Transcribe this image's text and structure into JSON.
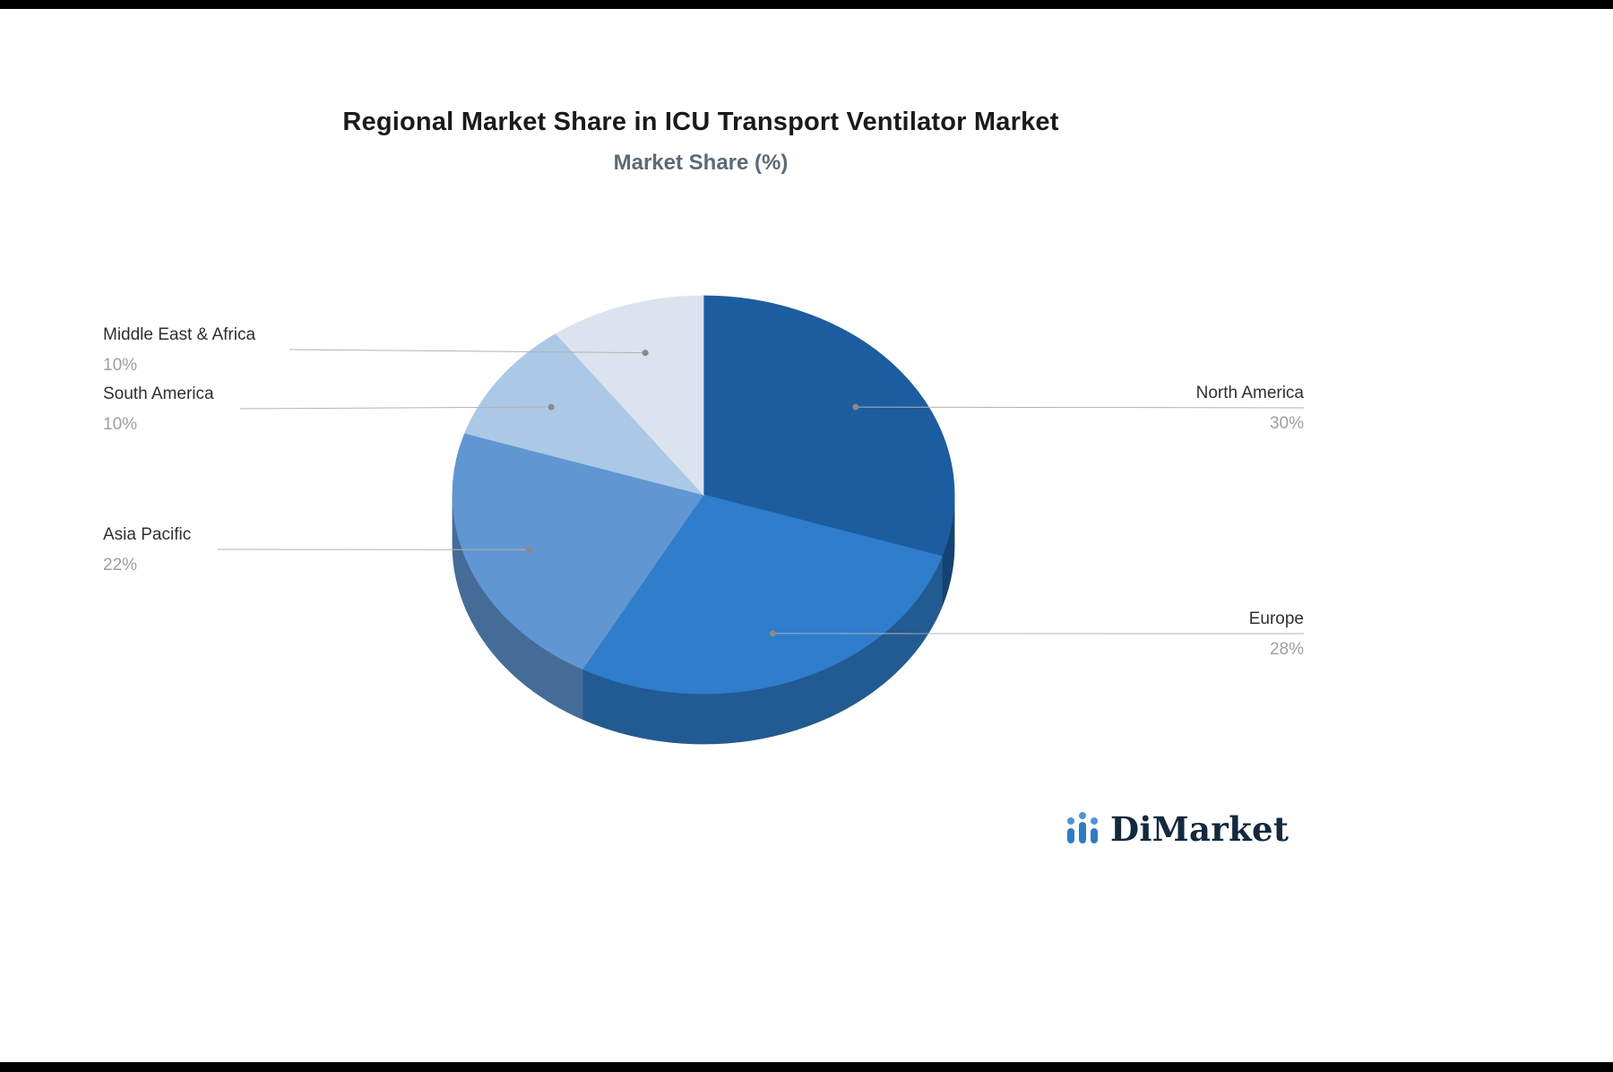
{
  "page": {
    "title": "Regional Market Share in ICU Transport Ventilator Market",
    "subtitle": "Market Share (%)"
  },
  "logo": {
    "text": "DiMarket"
  },
  "chart_data": {
    "type": "pie",
    "title": "Regional Market Share in ICU Transport Ventilator Market",
    "subtitle": "Market Share (%)",
    "unit": "%",
    "effect": "3d",
    "legend": "none",
    "labels": [
      "North America",
      "Europe",
      "Asia Pacific",
      "South America",
      "Middle East & Africa"
    ],
    "values": [
      30,
      28,
      22,
      10,
      10
    ],
    "colors": [
      "#1c5d9f",
      "#2f7dcb",
      "#6096d2",
      "#abc8e6",
      "#dbe3ee"
    ],
    "label_color": "#2f2f2f",
    "value_color": "#9e9e9e",
    "leader_line_color": "#b3b3b3",
    "start_angle_deg": 0,
    "direction": "clockwise"
  }
}
